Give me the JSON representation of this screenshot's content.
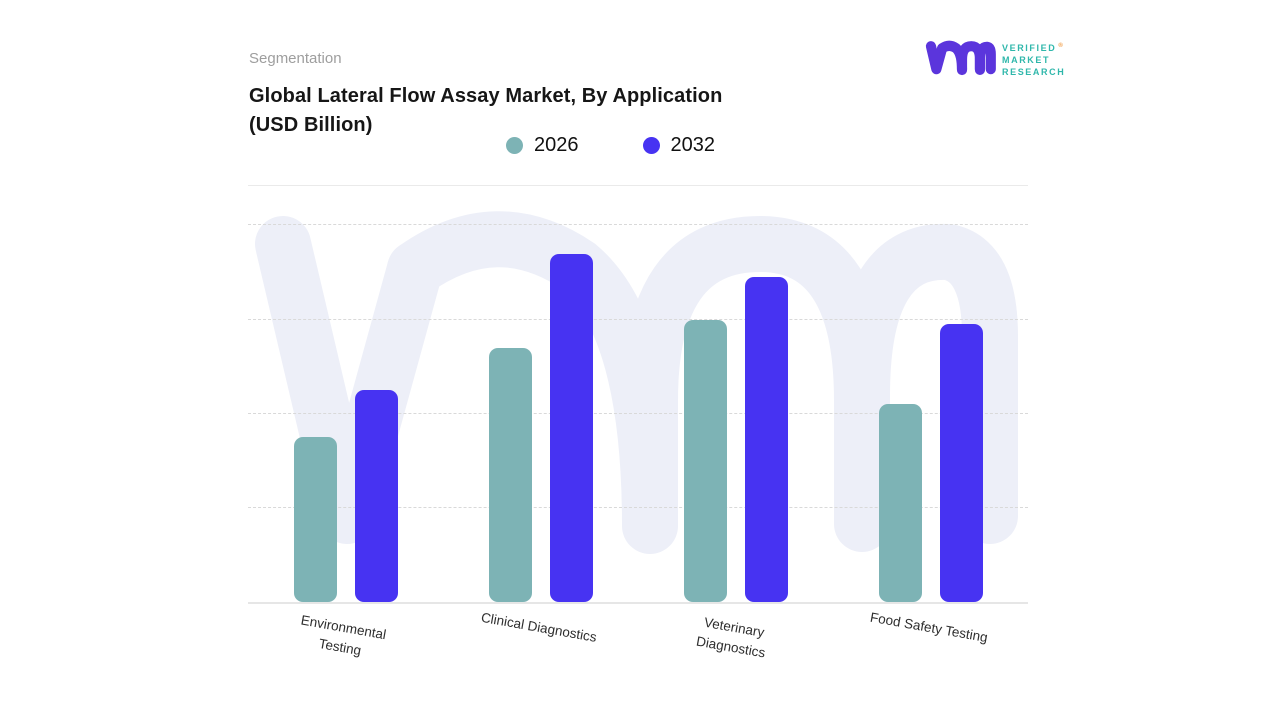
{
  "header": {
    "segmentation_label": "Segmentation",
    "logo": {
      "brand_lines": [
        "VERIFIED",
        "MARKET",
        "RESEARCH"
      ],
      "registered_mark": "®"
    }
  },
  "title": {
    "lines": [
      "Global Lateral Flow Assay Market, By Application",
      "(USD Billion)"
    ]
  },
  "legend": [
    {
      "label": "2026",
      "color": "#7db3b5"
    },
    {
      "label": "2032",
      "color": "#4733f2"
    }
  ],
  "chart_data": {
    "type": "bar",
    "title": "Global Lateral Flow Assay Market, By Application (USD Billion)",
    "unit": "USD Billion",
    "categories": [
      "Environmental Testing",
      "Clinical Diagnostics",
      "Veterinary Diagnostics",
      "Food Safety Testing"
    ],
    "category_label_lines": [
      [
        "Environmental",
        "Testing"
      ],
      [
        "Clinical Diagnostics"
      ],
      [
        "Veterinary",
        "Diagnostics"
      ],
      [
        "Food Safety Testing"
      ]
    ],
    "series": [
      {
        "name": "2026",
        "color": "#7db3b5",
        "values": [
          1.75,
          2.7,
          3.0,
          2.1
        ]
      },
      {
        "name": "2032",
        "color": "#4733f2",
        "values": [
          2.25,
          3.7,
          3.45,
          2.95
        ]
      }
    ],
    "value_axis": {
      "min": 0,
      "max": 4.45,
      "gridline_values": [
        1,
        2,
        3,
        4
      ],
      "labels_visible": false
    },
    "layout": {
      "legend_position": "top",
      "grid": "horizontal-dashed",
      "x_label_rotation_deg": 10
    }
  },
  "colors": {
    "series_2026": "#7db3b5",
    "series_2032": "#4733f2",
    "watermark": "#edeff8",
    "gridline": "#d9d9d9",
    "axis_line": "#e7e7e7",
    "title_text": "#161616",
    "segmentation_text": "#9e9e9e",
    "logo_glyph": "#5b35dc",
    "logo_text": "#2fb7ab",
    "registered_mark": "#f0973c"
  }
}
